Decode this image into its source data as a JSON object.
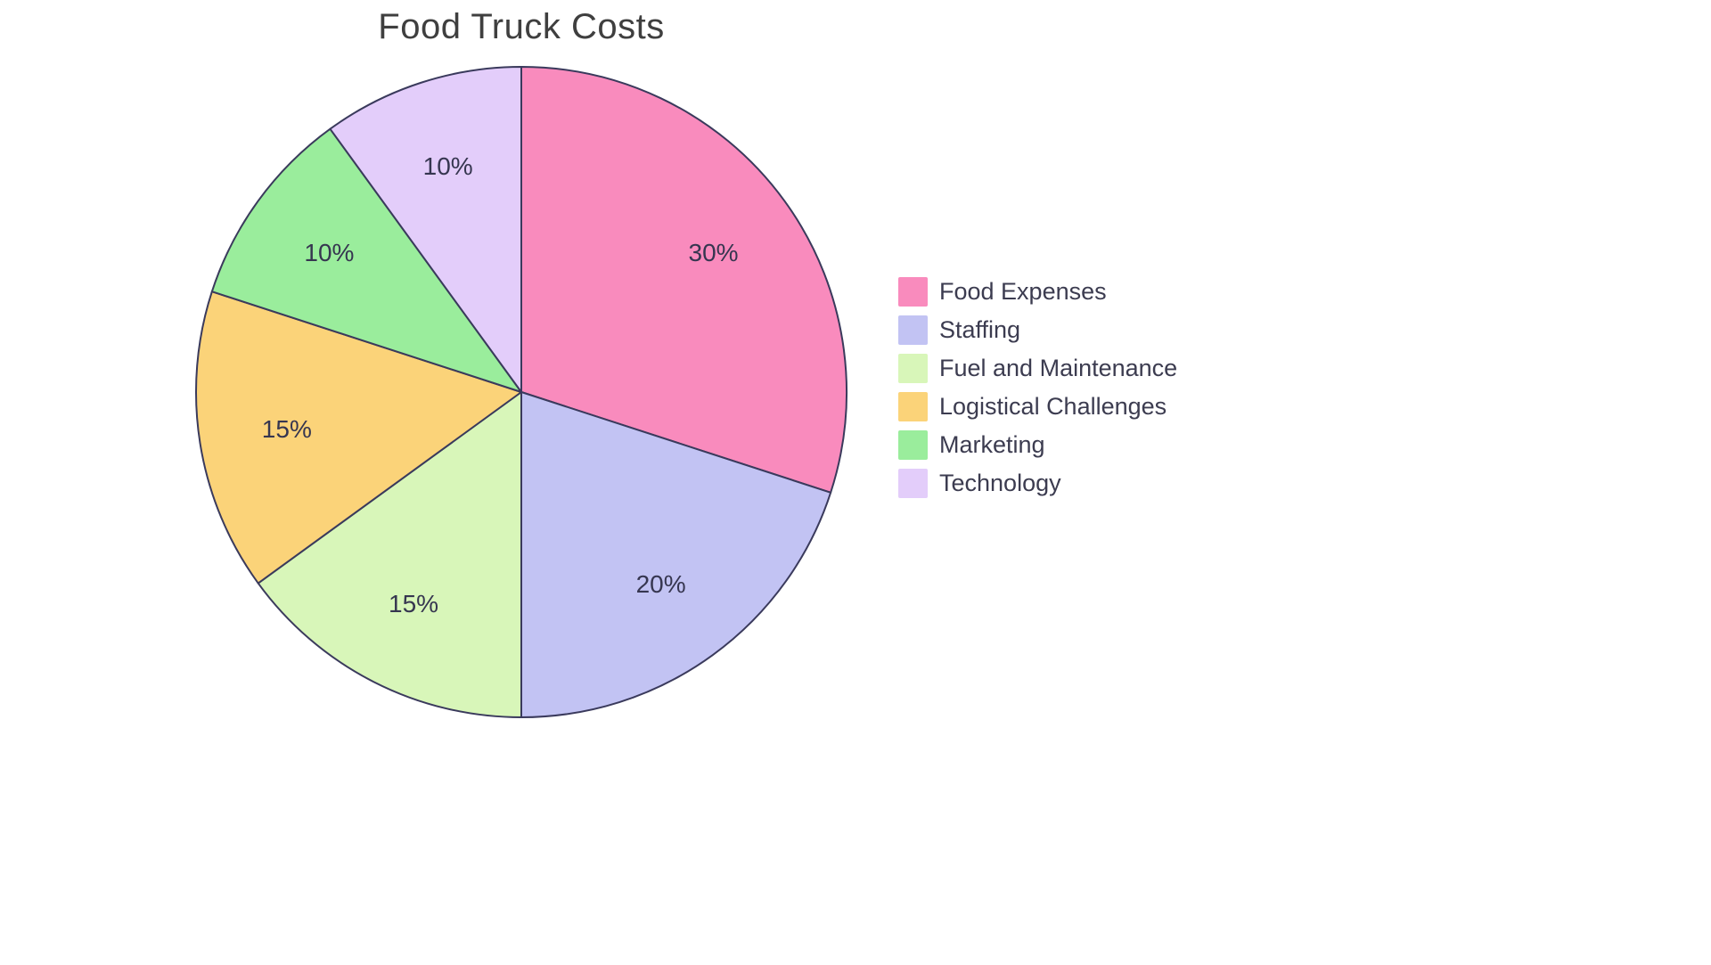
{
  "chart_data": {
    "type": "pie",
    "title": "Food Truck Costs",
    "labels": [
      "Food Expenses",
      "Staffing",
      "Fuel and Maintenance",
      "Logistical Challenges",
      "Marketing",
      "Technology"
    ],
    "values": [
      30,
      20,
      15,
      15,
      10,
      10
    ],
    "slice_labels": [
      "30%",
      "20%",
      "15%",
      "15%",
      "10%",
      "10%"
    ],
    "colors": [
      "#F98BBD",
      "#C2C3F3",
      "#D8F6B9",
      "#FBD379",
      "#9AED9C",
      "#E3CDFA"
    ],
    "stroke_color": "#3A3A5C",
    "start_angle": 0,
    "direction": "clockwise",
    "legend_position": "right",
    "unit": "%"
  }
}
